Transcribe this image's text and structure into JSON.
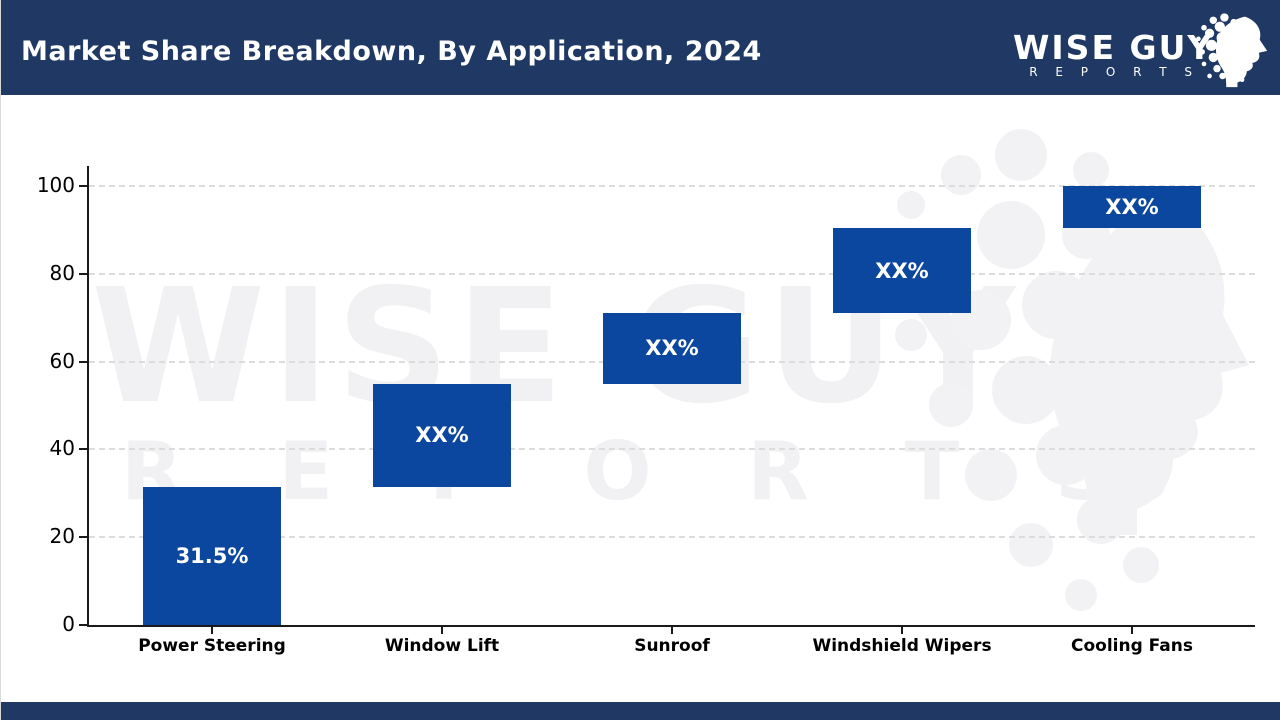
{
  "header": {
    "title": "Market Share Breakdown, By Application, 2024",
    "logo": {
      "line1": "WISE GUY",
      "line2": "R E P O R T S"
    },
    "bg_color": "#1f3864",
    "text_color": "#ffffff"
  },
  "watermark": {
    "line1": "WISE GUY",
    "line2": "R E P O R T S",
    "color": "#f1f1f3"
  },
  "chart_data": {
    "type": "waterfall",
    "title": "Market Share Breakdown, By Application, 2024",
    "categories": [
      "Power Steering",
      "Window Lift",
      "Sunroof",
      "Windshield Wipers",
      "Cooling Fans"
    ],
    "segments": [
      {
        "category": "Power Steering",
        "start": 0,
        "end": 31.5,
        "value": 31.5,
        "label": "31.5%"
      },
      {
        "category": "Window Lift",
        "start": 31.5,
        "end": 55,
        "value": 23.5,
        "label": "XX%"
      },
      {
        "category": "Sunroof",
        "start": 55,
        "end": 71,
        "value": 16,
        "label": "XX%"
      },
      {
        "category": "Windshield Wipers",
        "start": 71,
        "end": 90.5,
        "value": 19.5,
        "label": "XX%"
      },
      {
        "category": "Cooling Fans",
        "start": 90.5,
        "end": 100,
        "value": 9.5,
        "label": "XX%"
      }
    ],
    "xlabel": "",
    "ylabel": "",
    "yticks": [
      0,
      20,
      40,
      60,
      80,
      100
    ],
    "ylim": [
      0,
      105
    ],
    "grid": {
      "horizontal": true,
      "style": "dashed",
      "color": "#dcdcdc"
    },
    "legend": "none",
    "bar_color": "#0b479e",
    "bar_label_color": "#ffffff",
    "axis_color": "#1a1a1a"
  }
}
